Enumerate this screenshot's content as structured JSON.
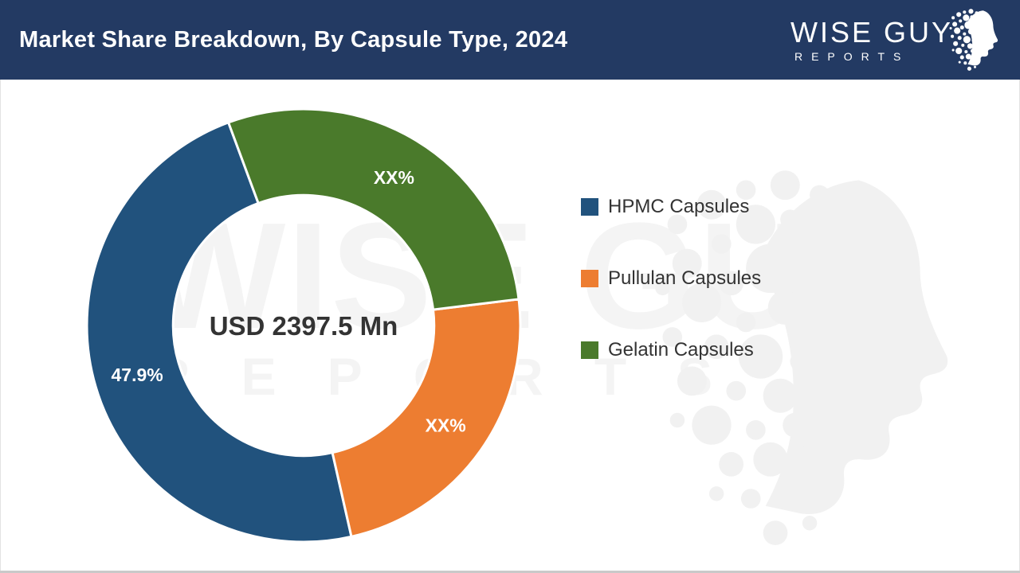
{
  "header": {
    "title": "Market Share Breakdown, By Capsule Type, 2024",
    "logo": {
      "wordmark": "WISE GUY",
      "subtext": "REPORTS"
    }
  },
  "watermark": {
    "line1": "WISE GUY",
    "line2": "REPORTS"
  },
  "chart_data": {
    "type": "donut",
    "title": "Market Share Breakdown, By Capsule Type, 2024",
    "center_label": "USD 2397.5 Mn",
    "total_label": "USD 2397.5 Mn",
    "start_angle_deg": 110.3,
    "direction": "counterclockwise",
    "inner_radius_ratio": 0.602,
    "legend_position": "right",
    "segments": [
      {
        "label": "HPMC Capsules",
        "value_pct": 47.9,
        "display_label": "47.9%",
        "color": "#21527D"
      },
      {
        "label": "Pullulan Capsules",
        "value_pct": 23.4,
        "display_label": "XX%",
        "color": "#ED7D31"
      },
      {
        "label": "Gelatin Capsules",
        "value_pct": 28.7,
        "display_label": "XX%",
        "color": "#4A7A2B"
      }
    ]
  },
  "colors": {
    "header_bg": "#233A63",
    "title_text": "#FFFFFF",
    "watermark": "#F4F4F4",
    "segment_label_text": "#FFFFFF",
    "center_text": "#333333",
    "legend_text": "#333333",
    "bottom_border": "#C9C9C9"
  }
}
